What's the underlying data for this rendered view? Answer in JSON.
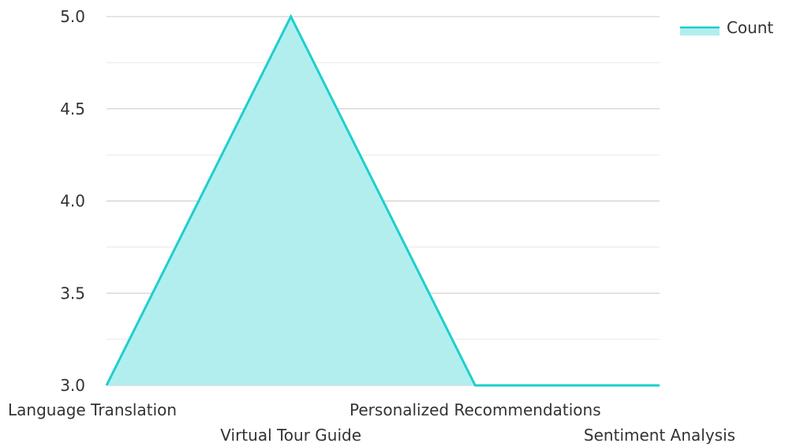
{
  "chart_data": {
    "type": "area",
    "categories": [
      "Language Translation",
      "Virtual Tour Guide",
      "Personalized Recommendations",
      "Sentiment Analysis"
    ],
    "series": [
      {
        "name": "Count",
        "values": [
          3,
          5,
          3,
          3
        ]
      }
    ],
    "ylim": [
      3,
      5
    ],
    "yticks": [
      "3.0",
      "3.5",
      "4.0",
      "4.5",
      "5.0"
    ],
    "grid": true,
    "legend_position": "top-right",
    "colors": {
      "line": "#1ccfcf",
      "fill": "#b2eeee",
      "grid_major": "#c8c8c8",
      "grid_minor": "#e8e8e8"
    }
  }
}
